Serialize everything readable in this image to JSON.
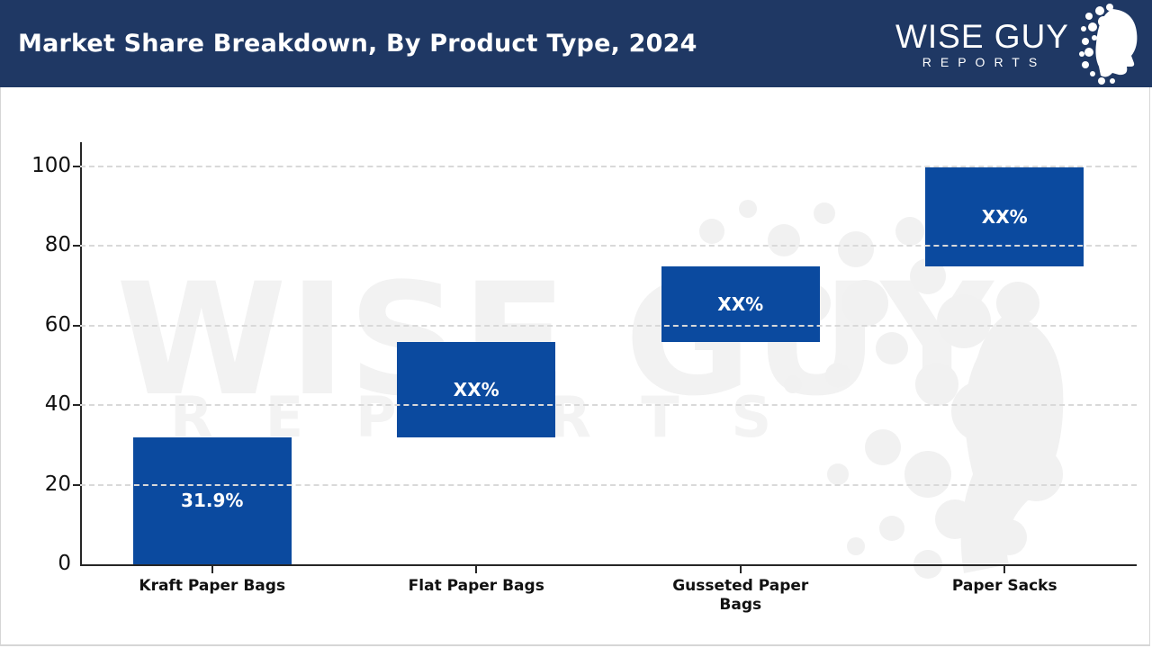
{
  "header": {
    "title": "Market Share Breakdown, By Product Type, 2024",
    "bg_color": "#1f3864",
    "logo": {
      "line1": "WISE GUY",
      "line2": "REPORTS"
    }
  },
  "watermark": {
    "line1": "WISE GUY",
    "line2": "REPORTS"
  },
  "chart_data": {
    "type": "bar",
    "subtype": "waterfall",
    "title": "Market Share Breakdown, By Product Type, 2024",
    "categories": [
      "Kraft Paper Bags",
      "Flat Paper Bags",
      "Gusseted Paper Bags",
      "Paper Sacks"
    ],
    "series": [
      {
        "name": "Market share (%)",
        "segments": [
          {
            "start": 0,
            "end": 31.9,
            "label": "31.9%"
          },
          {
            "start": 31.9,
            "end": 55.9,
            "label": "XX%"
          },
          {
            "start": 55.9,
            "end": 74.9,
            "label": "XX%"
          },
          {
            "start": 74.9,
            "end": 99.8,
            "label": "XX%"
          }
        ]
      }
    ],
    "xlabel": "",
    "ylabel": "",
    "ylim": [
      0,
      100
    ],
    "yticks": [
      0,
      20,
      40,
      60,
      80,
      100
    ],
    "grid": "horizontal-dashed",
    "legend": "none",
    "colors": {
      "bar": "#0b4a9f",
      "bar_label": "#ffffff",
      "axis": "#262626",
      "gridline": "#d9d9d9",
      "tick_text": "#111111"
    }
  }
}
